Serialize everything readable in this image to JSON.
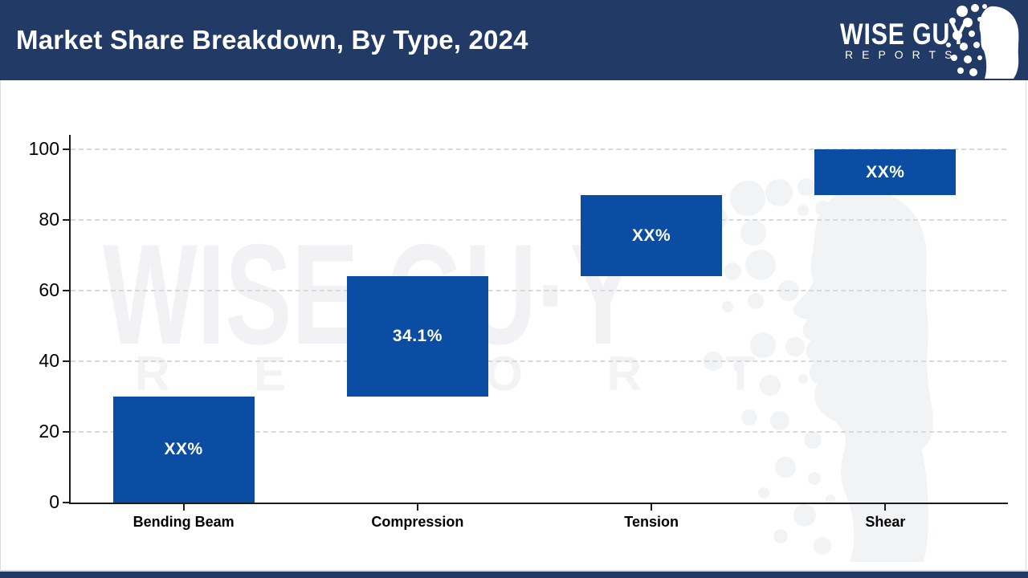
{
  "header": {
    "title": "Market Share Breakdown, By Type, 2024",
    "logo": {
      "line1": "WISE GUY",
      "line2": "REPORTS"
    }
  },
  "watermark": {
    "line1": "WISE GU·Y",
    "line2": "R E P O R T S"
  },
  "footer": {
    "text": ""
  },
  "colors": {
    "header_bg": "#223a66",
    "footer_bg": "#223a66",
    "bar_blue": "#0b4da2",
    "grid_gray": "#d9d9d9",
    "axis_black": "#1c1c1c",
    "watermark_gray": "#f2f3f5"
  },
  "chart_data": {
    "type": "bar",
    "subtype": "floating-waterfall",
    "title": "Market Share Breakdown, By Type, 2024",
    "categories": [
      "Bending Beam",
      "Compression",
      "Tension",
      "Shear"
    ],
    "series": [
      {
        "name": "Market share (%)",
        "segments": [
          {
            "category": "Bending Beam",
            "start": 0,
            "end": 30,
            "label": "XX%"
          },
          {
            "category": "Compression",
            "start": 30,
            "end": 64.1,
            "label": "34.1%"
          },
          {
            "category": "Tension",
            "start": 64.1,
            "end": 87,
            "label": "XX%"
          },
          {
            "category": "Shear",
            "start": 87,
            "end": 100,
            "label": "XX%"
          }
        ]
      }
    ],
    "xlabel": "",
    "ylabel": "",
    "ylim": [
      0,
      104
    ],
    "yticks": [
      0,
      20,
      40,
      60,
      80,
      100
    ],
    "grid": {
      "horizontal": true,
      "style": "dashed"
    },
    "legend": "none",
    "bar_color": "#0b4da2",
    "bar_label_color": "#ffffff"
  }
}
